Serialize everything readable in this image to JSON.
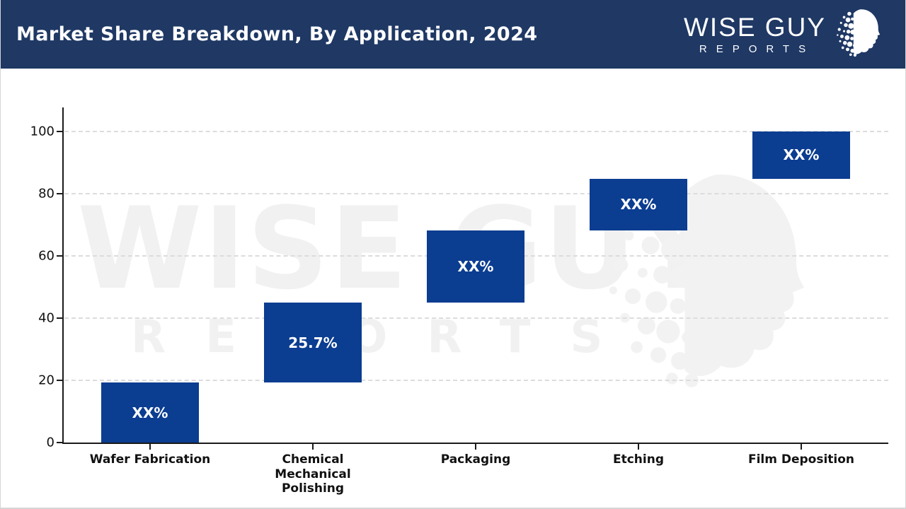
{
  "header": {
    "title": "Market Share Breakdown, By Application, 2024",
    "bg_color": "#1F3864",
    "logo": {
      "name": "WISE GUY",
      "sub": "REPORTS"
    }
  },
  "watermark": {
    "name": "WISE GUY",
    "sub": "REPORTS"
  },
  "chart_data": {
    "type": "bar",
    "subtype": "floating-waterfall",
    "title": "Market Share Breakdown, By Application, 2024",
    "categories": [
      "Wafer Fabrication",
      "Chemical Mechanical Polishing",
      "Packaging",
      "Etching",
      "Film Deposition"
    ],
    "category_tick_lines": [
      [
        "Wafer Fabrication"
      ],
      [
        "Chemical",
        "Mechanical",
        "Polishing"
      ],
      [
        "Packaging"
      ],
      [
        "Etching"
      ],
      [
        "Film Deposition"
      ]
    ],
    "series": [
      {
        "name": "Market share (%)",
        "segments": [
          {
            "category": "Wafer Fabrication",
            "start": 0,
            "end": 19.3,
            "label": "XX%"
          },
          {
            "category": "Chemical Mechanical Polishing",
            "start": 19.3,
            "end": 45.0,
            "label": "25.7%"
          },
          {
            "category": "Packaging",
            "start": 45.0,
            "end": 68.2,
            "label": "XX%"
          },
          {
            "category": "Etching",
            "start": 68.2,
            "end": 84.8,
            "label": "XX%"
          },
          {
            "category": "Film Deposition",
            "start": 84.8,
            "end": 100.0,
            "label": "XX%"
          }
        ]
      }
    ],
    "xlabel": "",
    "ylabel": "",
    "ylim": [
      0,
      100
    ],
    "yticks": [
      0,
      20,
      40,
      60,
      80,
      100
    ],
    "grid": "horizontal-dashed",
    "legend": "none",
    "bar_color": "#0B3D91",
    "bar_label_color": "#FFFFFF",
    "axis_color": "#1A1A1A",
    "gridline_color": "#DCDCDC"
  }
}
